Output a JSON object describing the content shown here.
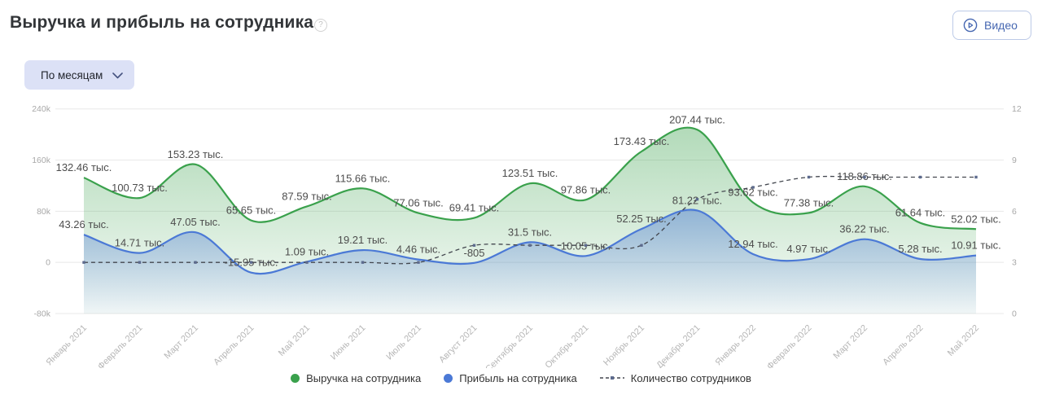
{
  "header": {
    "title": "Выручка и прибыль на сотрудника",
    "help_icon": "?",
    "video_button": "Видео"
  },
  "controls": {
    "period_dropdown": "По месяцам"
  },
  "chart_data": {
    "type": "area",
    "title": "Выручка и прибыль на сотрудника",
    "grid": "horizontal",
    "legend_position": "bottom",
    "categories": [
      "Январь 2021",
      "Февраль 2021",
      "Март 2021",
      "Апрель 2021",
      "Май 2021",
      "Июнь 2021",
      "Июль 2021",
      "Август 2021",
      "Сентябрь 2021",
      "Октябрь 2021",
      "Ноябрь 2021",
      "Декабрь 2021",
      "Январь 2022",
      "Февраль 2022",
      "Март 2022",
      "Апрель 2022",
      "Май 2022"
    ],
    "left_axis": {
      "ticks": [
        "240k",
        "160k",
        "80k",
        "0",
        "-80k"
      ],
      "values_thousands": [
        240,
        160,
        80,
        0,
        -80
      ]
    },
    "right_axis": {
      "ticks": [
        "12",
        "9",
        "6",
        "3",
        "0"
      ],
      "values": [
        12,
        9,
        6,
        3,
        0
      ]
    },
    "series": [
      {
        "name": "Выручка на сотрудника",
        "axis": "left",
        "color": "#3aa14c",
        "values_thousands": [
          132.46,
          100.73,
          153.23,
          65.65,
          87.59,
          115.66,
          77.06,
          69.41,
          123.51,
          97.86,
          173.43,
          207.44,
          93.62,
          77.38,
          118.86,
          61.64,
          52.02
        ],
        "labels": [
          "132.46 тыс.",
          "100.73 тыс.",
          "153.23 тыс.",
          "65.65 тыс.",
          "87.59 тыс.",
          "115.66 тыс.",
          "77.06 тыс.",
          "69.41 тыс.",
          "123.51 тыс.",
          "97.86 тыс.",
          "173.43 тыс.",
          "207.44 тыс.",
          "93.62 тыс.",
          "77.38 тыс.",
          "118.86 тыс.",
          "61.64 тыс.",
          "52.02 тыс."
        ]
      },
      {
        "name": "Прибыль на сотрудника",
        "axis": "left",
        "color": "#4b79d6",
        "values_thousands": [
          43.26,
          14.71,
          47.05,
          -15.95,
          1.09,
          19.21,
          4.46,
          -0.805,
          31.5,
          10.05,
          52.25,
          81.22,
          12.94,
          4.97,
          36.22,
          5.28,
          10.91
        ],
        "labels": [
          "43.26 тыс.",
          "14.71 тыс.",
          "47.05 тыс.",
          "-15.95 тыс.",
          "1.09 тыс.",
          "19.21 тыс.",
          "4.46 тыс.",
          "-805",
          "31.5 тыс.",
          "10.05 тыс.",
          "52.25 тыс.",
          "81.22 тыс.",
          "12.94 тыс.",
          "4.97 тыс.",
          "36.22 тыс.",
          "5.28 тыс.",
          "10.91 тыс."
        ]
      },
      {
        "name": "Количество сотрудников",
        "axis": "right",
        "style": "dashed",
        "color": "#43474f",
        "marker_color": "#5d6b8e",
        "values": [
          3,
          3,
          3,
          3,
          3,
          3,
          3,
          4,
          4,
          4,
          4,
          6.7,
          7.4,
          8,
          8,
          8,
          8
        ]
      }
    ]
  },
  "legend": [
    {
      "label": "Выручка на сотрудника"
    },
    {
      "label": "Прибыль на сотрудника"
    },
    {
      "label": "Количество сотрудников"
    }
  ]
}
